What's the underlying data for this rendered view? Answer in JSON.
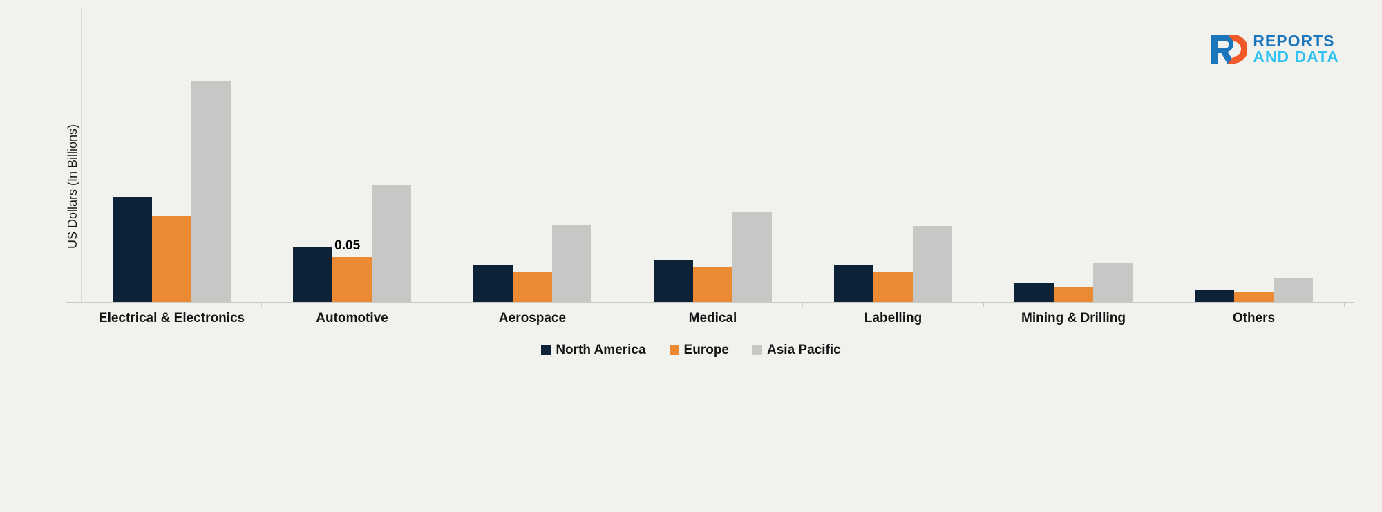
{
  "logo": {
    "name": "Reports and Data",
    "line1": "REPORTS",
    "line2": "AND DATA"
  },
  "chart_data": {
    "type": "bar",
    "title": "",
    "xlabel": "",
    "ylabel": "US Dollars (In Billions)",
    "ylim": [
      0,
      0.26
    ],
    "grid": false,
    "legend_position": "bottom",
    "categories": [
      "Electrical & Electronics",
      "Automotive",
      "Aerospace",
      "Medical",
      "Labelling",
      "Mining & Drilling",
      "Others"
    ],
    "series": [
      {
        "name": "North America",
        "color": "#0d2137",
        "values": [
          0.117,
          0.062,
          0.041,
          0.047,
          0.042,
          0.021,
          0.013
        ]
      },
      {
        "name": "Europe",
        "color": "#ec8933",
        "values": [
          0.096,
          0.05,
          0.034,
          0.039,
          0.033,
          0.016,
          0.011
        ]
      },
      {
        "name": "Asia Pacific",
        "color": "#c7c7c5",
        "values": [
          0.247,
          0.13,
          0.086,
          0.1,
          0.085,
          0.043,
          0.027
        ]
      }
    ],
    "annotations": [
      {
        "category": "Automotive",
        "series": "Europe",
        "text": "0.05"
      }
    ]
  }
}
